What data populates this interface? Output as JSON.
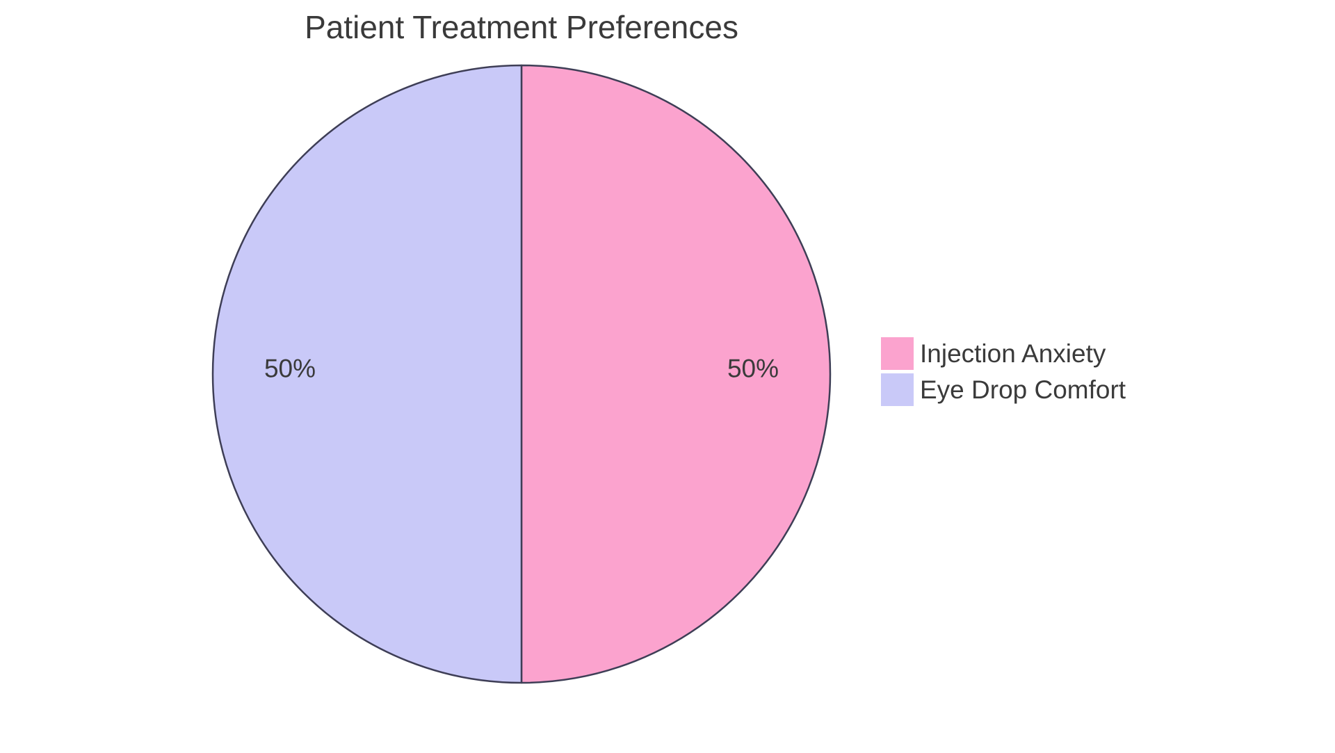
{
  "page": {
    "background_color": "#ffffff"
  },
  "chart_data": {
    "type": "pie",
    "title": "Patient Treatment Preferences",
    "labels": [
      "Injection Anxiety",
      "Eye Drop Comfort"
    ],
    "values": [
      50,
      50
    ],
    "percent_labels": [
      "50%",
      "50%"
    ],
    "colors": [
      "#FBA3CE",
      "#C9C9F8"
    ],
    "stroke_color": "#3E3E56",
    "text_color": "#3A3A3A",
    "title_color": "#3A3A3A",
    "legend_position": "right",
    "start_angle_deg": -90,
    "direction": "clockwise"
  },
  "legend": {
    "items": [
      {
        "label": "Injection Anxiety",
        "color": "#FBA3CE"
      },
      {
        "label": "Eye Drop Comfort",
        "color": "#C9C9F8"
      }
    ]
  }
}
